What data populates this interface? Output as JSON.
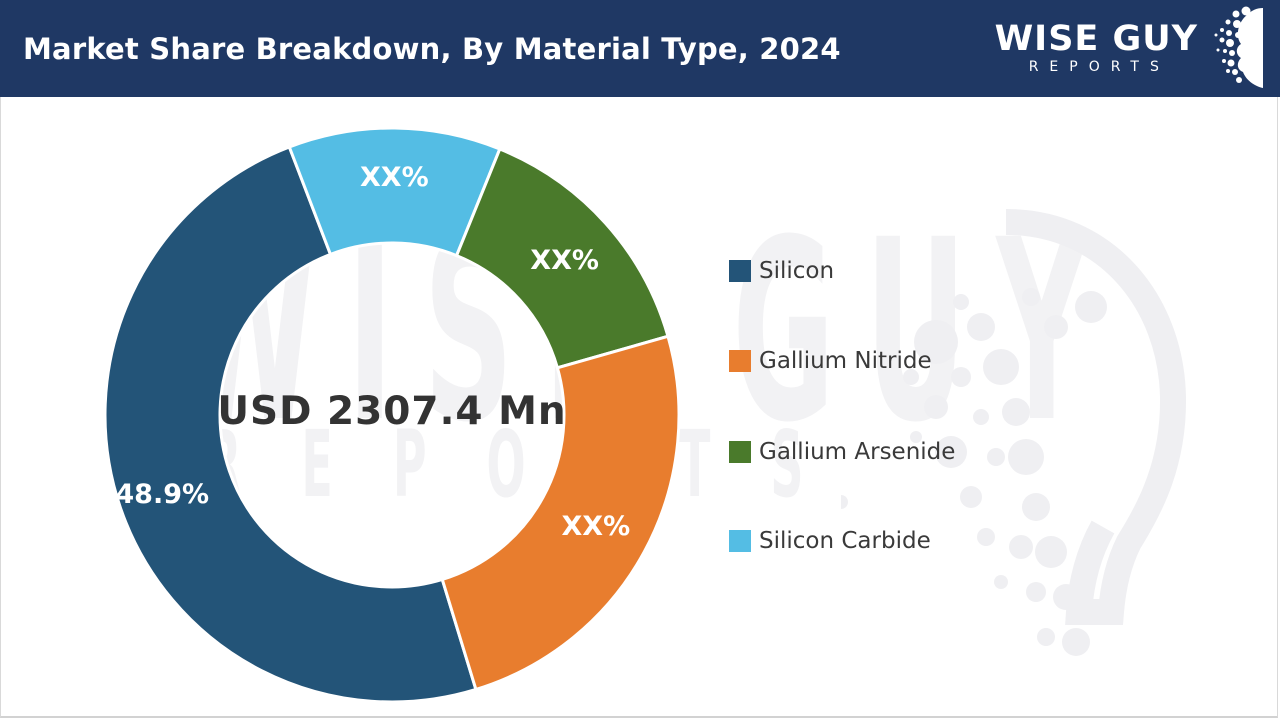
{
  "header": {
    "title": "Market Share Breakdown, By Material Type, 2024",
    "logo": {
      "line1": "WISE GUY",
      "line2": "REPORTS"
    }
  },
  "watermark": {
    "line1": "WISE GUY",
    "line2": "REPORTS"
  },
  "chart_data": {
    "type": "pie",
    "subtype": "donut",
    "title": "Market Share Breakdown, By Material Type, 2024",
    "center_label": "USD 2307.4 Mn",
    "start_angle_deg": 163,
    "segments": [
      {
        "name": "Silicon",
        "display_label": "48.9%",
        "pct": 48.9,
        "color": "#235478",
        "label_r": 243
      },
      {
        "name": "Silicon Carbide",
        "display_label": "XX%",
        "pct": 11.95,
        "color": "#54BDE4",
        "label_r": 238
      },
      {
        "name": "Gallium Arsenide",
        "display_label": "XX%",
        "pct": 14.45,
        "color": "#4A7A2B",
        "label_r": 232
      },
      {
        "name": "Gallium Nitride",
        "display_label": "XX%",
        "pct": 24.7,
        "color": "#E87D2E",
        "label_r": 232
      }
    ],
    "legend_position": "right"
  },
  "legend": {
    "items": [
      {
        "label": "Silicon",
        "color": "#235478"
      },
      {
        "label": "Gallium Nitride",
        "color": "#E87D2E"
      },
      {
        "label": "Gallium Arsenide",
        "color": "#4A7A2B"
      },
      {
        "label": "Silicon Carbide",
        "color": "#54BDE4"
      }
    ]
  },
  "colors": {
    "header_bg": "#1F3864",
    "silicon": "#235478",
    "gallium_nitride": "#E87D2E",
    "gallium_arsenide": "#4A7A2B",
    "silicon_carbide": "#54BDE4",
    "watermark": "#f2f2f4",
    "center_text": "#333333"
  }
}
